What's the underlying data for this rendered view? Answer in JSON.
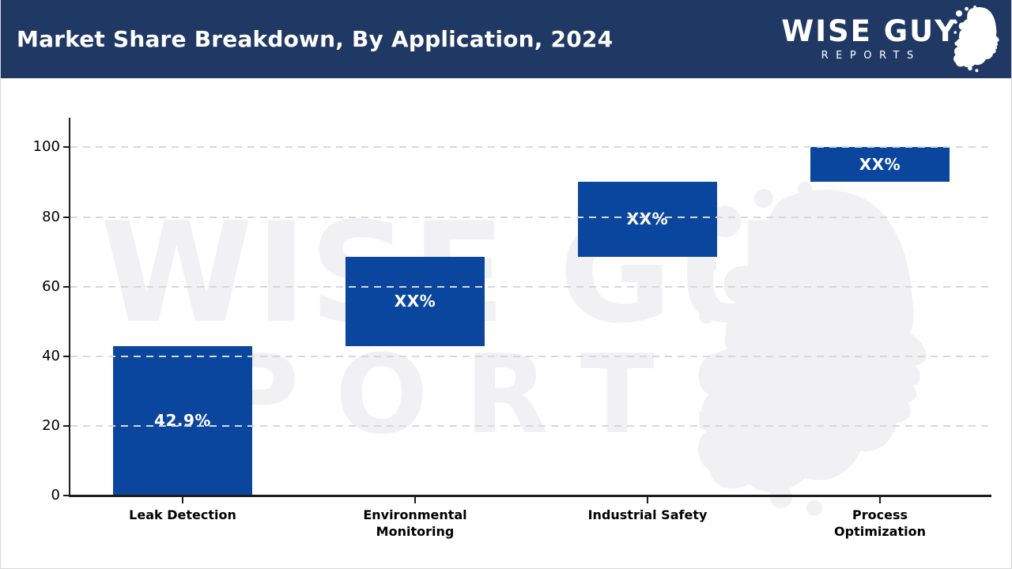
{
  "header": {
    "title": "Market Share Breakdown, By Application, 2024",
    "logo": {
      "line1": "WISE GUY",
      "line2": "REPORTS"
    }
  },
  "watermark": {
    "line1": "WISE GUY",
    "line2": "PORTS"
  },
  "colors": {
    "header_bg": "#1f3864",
    "header_text": "#ffffff",
    "bar": "#0a469e",
    "bar_label": "#ffffff",
    "grid": "#d8d8d8",
    "axis": "#1c1c1c",
    "tick_text": "#000000",
    "watermark": "#f1f1f3"
  },
  "chart_data": {
    "type": "bar",
    "subtype": "stacked-breakdown-waterfall",
    "title": "Market Share Breakdown, By Application, 2024",
    "categories": [
      "Leak Detection",
      "Environmental\nMonitoring",
      "Industrial Safety",
      "Process\nOptimization"
    ],
    "segments": [
      {
        "category": "Leak Detection",
        "start": 0,
        "end": 42.9,
        "label": "42.9%"
      },
      {
        "category": "Environmental Monitoring",
        "start": 42.9,
        "end": 68.6,
        "label": "XX%"
      },
      {
        "category": "Industrial Safety",
        "start": 68.6,
        "end": 90.2,
        "label": "XX%"
      },
      {
        "category": "Process Optimization",
        "start": 90.2,
        "end": 100,
        "label": "XX%"
      }
    ],
    "y_ticks": [
      0,
      20,
      40,
      60,
      80,
      100
    ],
    "ylim": [
      0,
      105
    ],
    "xlabel": "",
    "ylabel": "",
    "grid": "dashed-horizontal",
    "legend": "none"
  }
}
